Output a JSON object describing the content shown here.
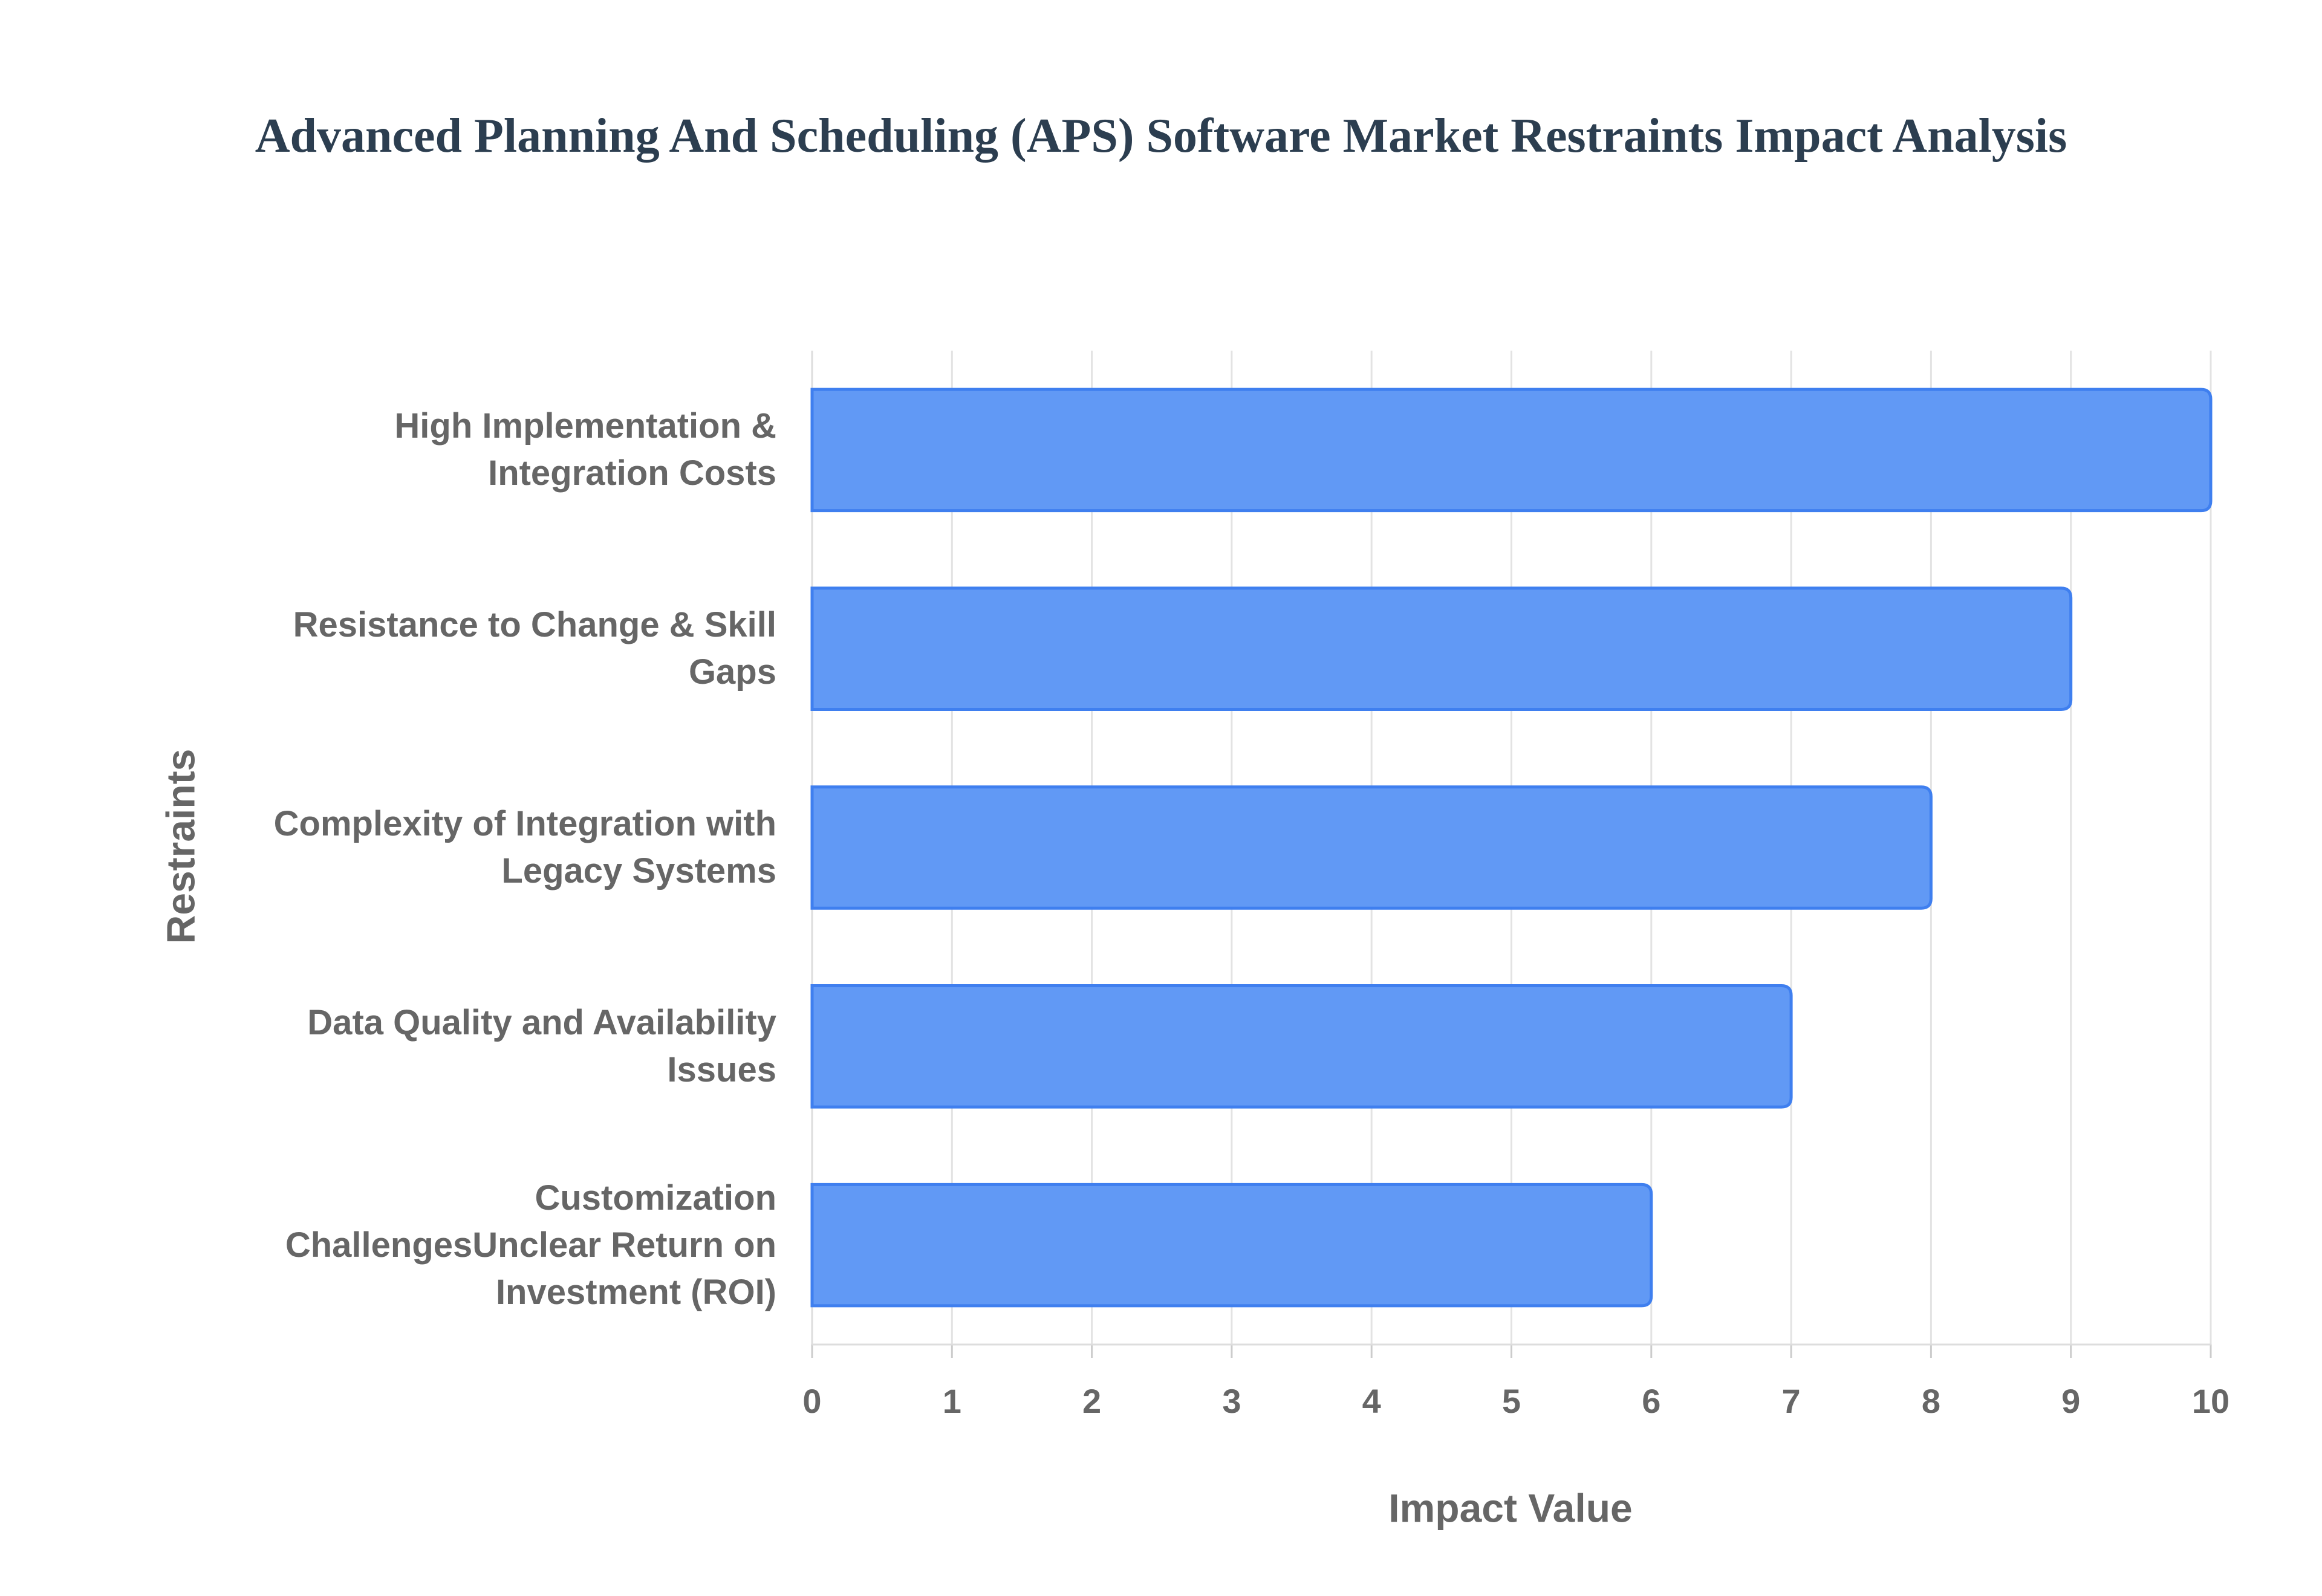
{
  "chart_data": {
    "type": "bar",
    "orientation": "horizontal",
    "title": "Advanced Planning And Scheduling (APS) Software Market Restraints Impact Analysis",
    "x_label": "Impact Value",
    "y_label": "Restraints",
    "categories": [
      "High Implementation & Integration Costs",
      "Resistance to Change & Skill Gaps",
      "Complexity of Integration with Legacy Systems",
      "Data Quality and Availability Issues",
      "Customization ChallengesUnclear Return on Investment (ROI)"
    ],
    "values": [
      10,
      9,
      8,
      7,
      6
    ],
    "color": "#6199f5",
    "xlim": [
      0,
      10
    ],
    "xticks": [
      0,
      1,
      2,
      3,
      4,
      5,
      6,
      7,
      8,
      9,
      10
    ],
    "grid": true
  }
}
